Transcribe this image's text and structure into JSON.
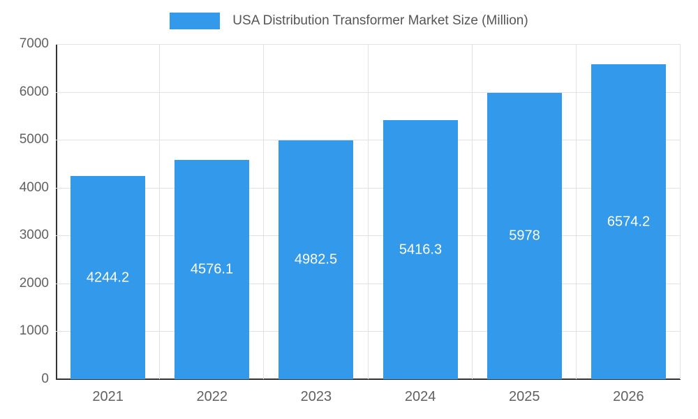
{
  "legend": {
    "label": "USA Distribution Transformer Market Size (Million)"
  },
  "colors": {
    "bar": "#3399eb",
    "value_label": "#ffffff",
    "axis_line": "#333333",
    "gridline": "#e2e2e2",
    "tick_text": "#616161",
    "legend_text": "#555555"
  },
  "chart_data": {
    "type": "bar",
    "title": "USA Distribution Transformer Market Size (Million)",
    "categories": [
      "2021",
      "2022",
      "2023",
      "2024",
      "2025",
      "2026"
    ],
    "values": [
      4244.2,
      4576.1,
      4982.5,
      5416.3,
      5978,
      6574.2
    ],
    "value_labels": [
      "4244.2",
      "4576.1",
      "4982.5",
      "5416.3",
      "5978",
      "6574.2"
    ],
    "xlabel": "",
    "ylabel": "",
    "ylim": [
      0,
      7000
    ],
    "yticks": [
      0,
      1000,
      2000,
      3000,
      4000,
      5000,
      6000,
      7000
    ],
    "grid": true,
    "legend_position": "top"
  }
}
